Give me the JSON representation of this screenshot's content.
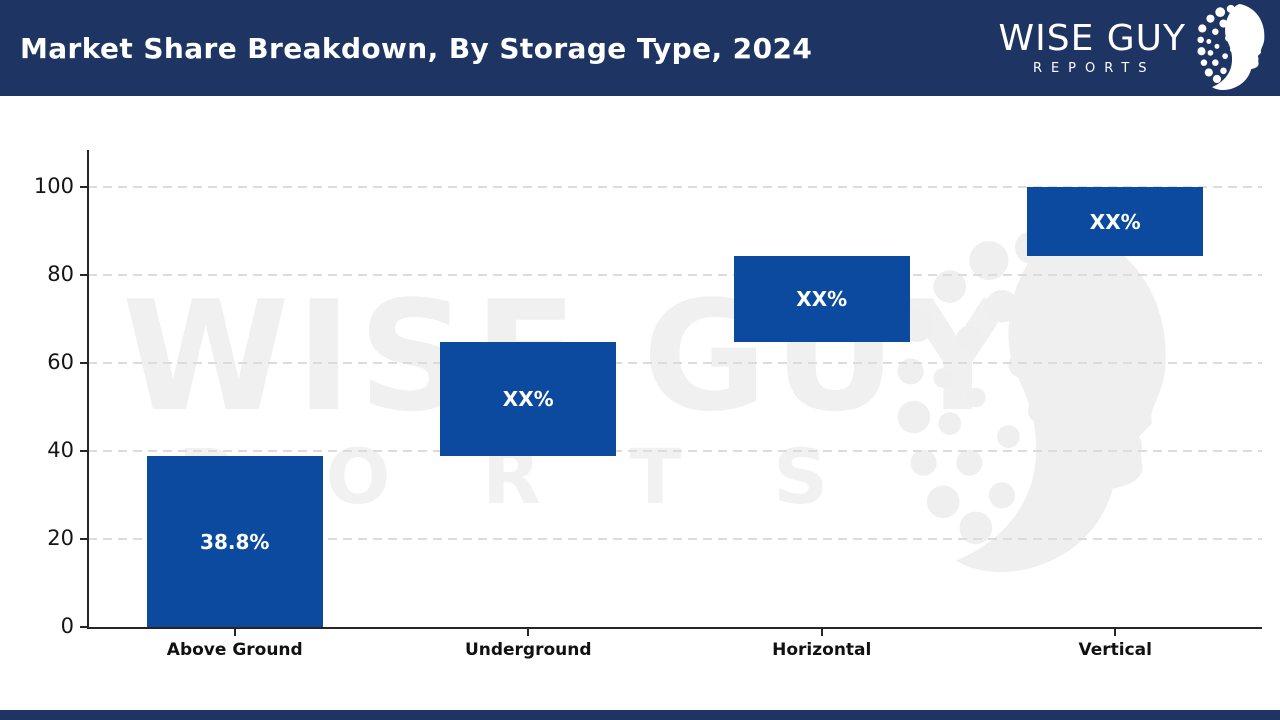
{
  "header": {
    "title": "Market Share Breakdown, By Storage Type, 2024",
    "bg_color": "#1e3463",
    "logo": {
      "line1": "WISE GUY",
      "line2": "REPORTS"
    }
  },
  "watermark": {
    "line1": "WISE GUY",
    "line2": "PORTS",
    "color": "#f0f0f0"
  },
  "footer": {
    "bg_color": "#1e3463"
  },
  "chart_data": {
    "type": "bar",
    "subtype": "waterfall",
    "title": "Market Share Breakdown, By Storage Type, 2024",
    "categories": [
      "Above Ground",
      "Underground",
      "Horizontal",
      "Vertical"
    ],
    "segments": [
      {
        "category": "Above Ground",
        "start": 0,
        "end": 38.8,
        "size": 38.8,
        "label": "38.8%"
      },
      {
        "category": "Underground",
        "start": 38.8,
        "end": 64.7,
        "size": 25.9,
        "label": "XX%"
      },
      {
        "category": "Horizontal",
        "start": 64.7,
        "end": 84.3,
        "size": 19.6,
        "label": "XX%"
      },
      {
        "category": "Vertical",
        "start": 84.3,
        "end": 100,
        "size": 15.7,
        "label": "XX%"
      }
    ],
    "bar_color": "#0c4aa0",
    "bar_label_color": "#ffffff",
    "xlabel": "",
    "ylabel": "",
    "ylim": [
      0,
      100
    ],
    "yticks": [
      0,
      20,
      40,
      60,
      80,
      100
    ],
    "grid": "horizontal dashed",
    "legend": "none"
  }
}
